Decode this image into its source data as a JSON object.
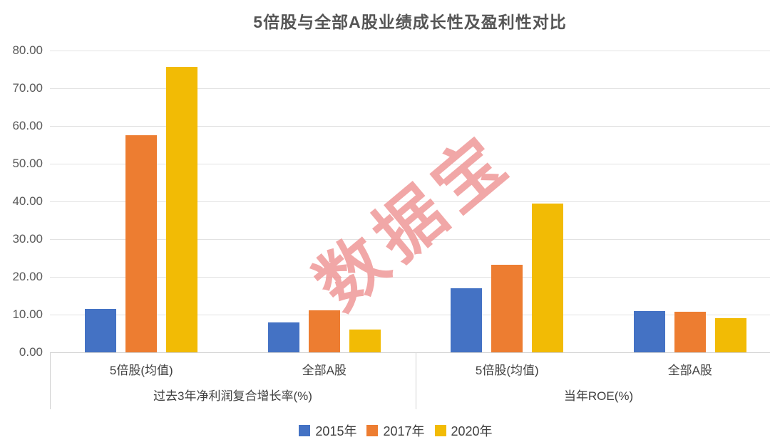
{
  "title": "5倍股与全部A股业绩成长性及盈利性对比",
  "watermark": "数据宝",
  "colors": {
    "series_2015": "#4472C4",
    "series_2017": "#ED7D31",
    "series_2020": "#F2BB05",
    "title_text": "#555555",
    "axis_text": "#595959",
    "gridline": "#E2E2E2",
    "axis_line": "#D2D2D2",
    "watermark_pink": "#EF9898"
  },
  "chart_data": {
    "type": "bar",
    "title": "5倍股与全部A股业绩成长性及盈利性对比",
    "group_labels": [
      "过去3年净利润复合增长率(%)",
      "当年ROE(%)"
    ],
    "categories": [
      "5倍股(均值)",
      "全部A股",
      "5倍股(均值)",
      "全部A股"
    ],
    "category_group_index": [
      0,
      0,
      1,
      1
    ],
    "series": [
      {
        "name": "2015年",
        "color": "#4472C4",
        "values": [
          11.5,
          8.0,
          17.0,
          11.0
        ]
      },
      {
        "name": "2017年",
        "color": "#ED7D31",
        "values": [
          57.5,
          11.1,
          23.3,
          10.8
        ]
      },
      {
        "name": "2020年",
        "color": "#F2BB05",
        "values": [
          75.7,
          6.0,
          39.4,
          9.0
        ]
      }
    ],
    "xlabel": "",
    "ylabel": "",
    "ylim": [
      0,
      80
    ],
    "ytick_step": 10,
    "ytick_labels": [
      "0.00",
      "10.00",
      "20.00",
      "30.00",
      "40.00",
      "50.00",
      "60.00",
      "70.00",
      "80.00"
    ],
    "grid": true,
    "legend_position": "bottom",
    "watermark": "数据宝"
  }
}
